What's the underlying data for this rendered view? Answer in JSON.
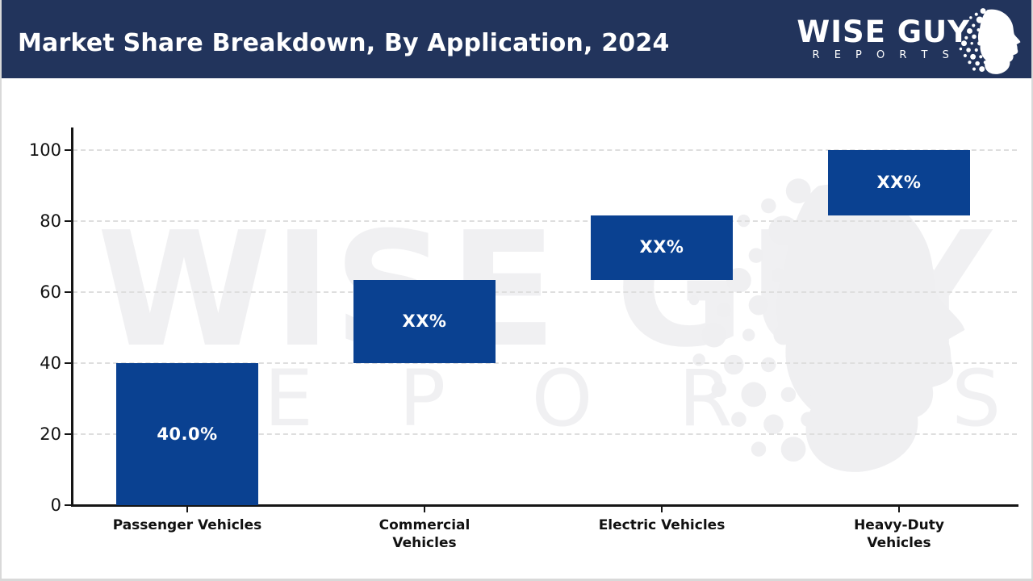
{
  "header": {
    "title": "Market Share Breakdown, By Application, 2024",
    "background_color": "#22345c",
    "logo": {
      "line1": "WISE GUY",
      "line2": "R E P O R T S"
    }
  },
  "watermark": {
    "line1": "WISE GUY",
    "line2": "R E P O R T S"
  },
  "chart_data": {
    "type": "bar",
    "subtype": "waterfall",
    "title": "Market Share Breakdown, By Application, 2024",
    "categories": [
      "Passenger Vehicles",
      "Commercial\nVehicles",
      "Electric Vehicles",
      "Heavy-Duty\nVehicles"
    ],
    "series": [
      {
        "name": "Market Share",
        "segments": [
          {
            "category": "Passenger Vehicles",
            "start": 0,
            "end": 40,
            "label": "40.0%"
          },
          {
            "category": "Commercial Vehicles",
            "start": 40,
            "end": 63.5,
            "label": "XX%"
          },
          {
            "category": "Electric Vehicles",
            "start": 63.5,
            "end": 81.5,
            "label": "XX%"
          },
          {
            "category": "Heavy-Duty Vehicles",
            "start": 81.5,
            "end": 100,
            "label": "XX%"
          }
        ]
      }
    ],
    "ylim": [
      0,
      100
    ],
    "yticks": [
      0,
      20,
      40,
      60,
      80,
      100
    ],
    "grid": "horizontal-dashed",
    "legend": "none",
    "bar_color": "#0a4191",
    "bar_label_color": "#ffffff",
    "axis_color": "#151515"
  }
}
